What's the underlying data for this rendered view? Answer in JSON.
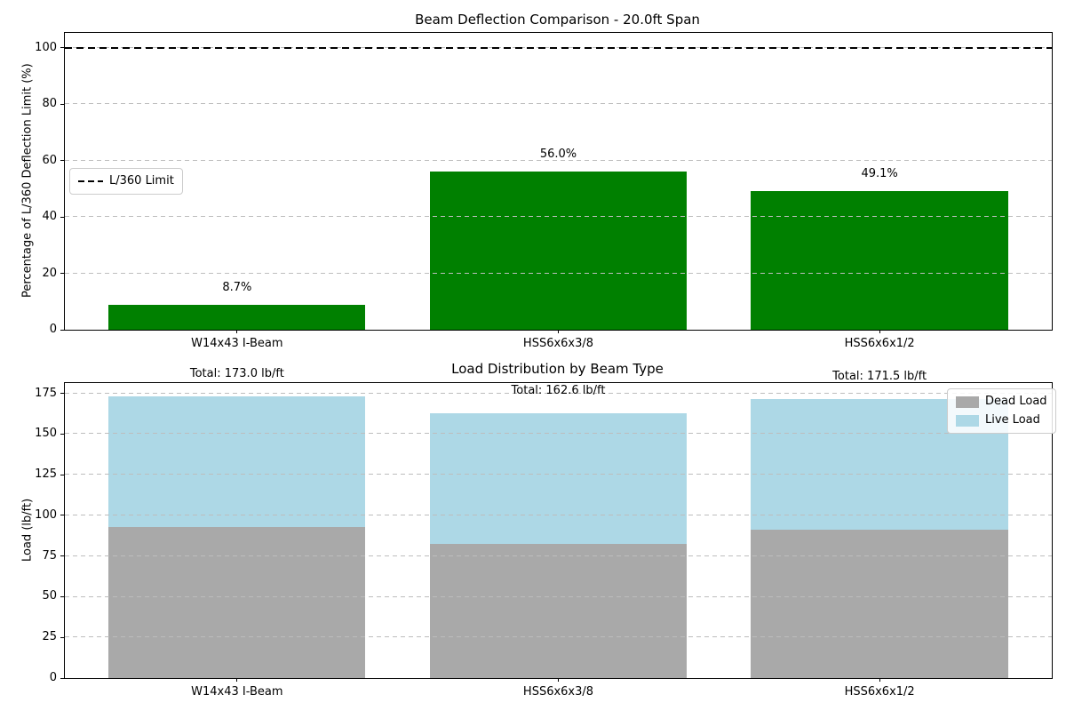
{
  "figure": {
    "background": "#ffffff",
    "grid_color": "#bdbdbd",
    "axis_color": "#000000"
  },
  "chart_data": [
    {
      "type": "bar",
      "title": "Beam Deflection Comparison - 20.0ft Span",
      "xlabel": "",
      "ylabel": "Percentage of L/360 Deflection Limit (%)",
      "categories": [
        "W14x43 I-Beam",
        "HSS6x6x3/8",
        "HSS6x6x1/2"
      ],
      "values": [
        8.7,
        56.0,
        49.1
      ],
      "bar_labels": [
        "8.7%",
        "56.0%",
        "49.1%"
      ],
      "bar_color": "#008000",
      "yticks": [
        0,
        20,
        40,
        60,
        80,
        100
      ],
      "ylim": [
        0,
        105.3
      ],
      "grid": "y dashed",
      "reference_line": {
        "value": 100,
        "color": "#000000",
        "style": "dashed"
      },
      "legend": {
        "position": "center-left",
        "entries": [
          {
            "label": "L/360 Limit",
            "swatch": "dashed-black-line",
            "color": "#000000"
          }
        ]
      }
    },
    {
      "type": "stacked-bar",
      "title": "Load Distribution by Beam Type",
      "xlabel": "",
      "ylabel": "Load (lb/ft)",
      "categories": [
        "W14x43 I-Beam",
        "HSS6x6x3/8",
        "HSS6x6x1/2"
      ],
      "series": [
        {
          "name": "Dead Load",
          "color": "#a9a9a9",
          "values": [
            93.0,
            82.6,
            91.5
          ]
        },
        {
          "name": "Live Load",
          "color": "#add8e6",
          "values": [
            80.0,
            80.0,
            80.0
          ]
        }
      ],
      "totals": [
        173.0,
        162.6,
        171.5
      ],
      "total_labels": [
        "Total: 173.0 lb/ft",
        "Total: 162.6 lb/ft",
        "Total: 171.5 lb/ft"
      ],
      "yticks": [
        0,
        25,
        50,
        75,
        100,
        125,
        150,
        175
      ],
      "ylim": [
        0,
        181.4
      ],
      "grid": "y dashed",
      "legend": {
        "position": "top-right",
        "entries": [
          {
            "label": "Dead Load",
            "color": "#a9a9a9"
          },
          {
            "label": "Live Load",
            "color": "#add8e6"
          }
        ]
      }
    }
  ]
}
